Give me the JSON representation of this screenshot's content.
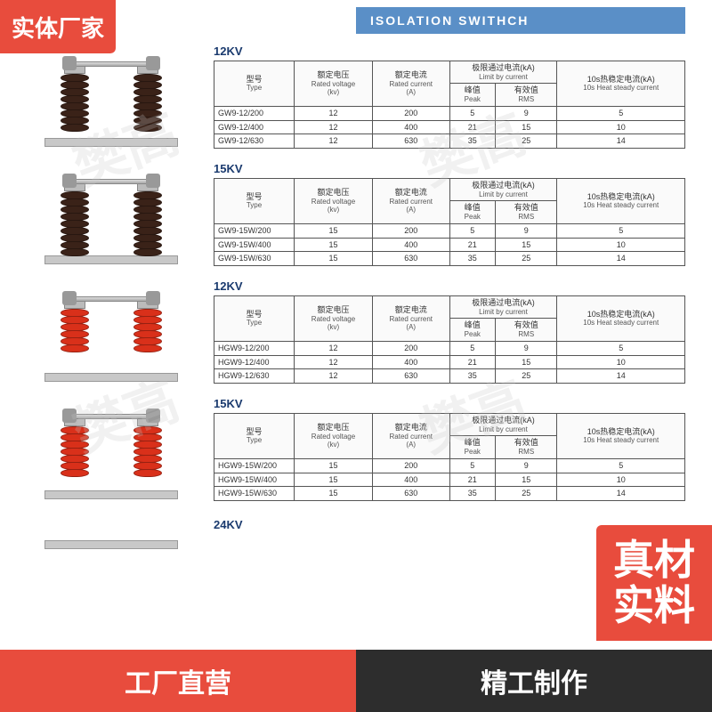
{
  "header": {
    "title": "ISOLATION SWITHCH"
  },
  "badges": {
    "top_left": "实体厂家",
    "bottom_right_l1": "真材",
    "bottom_right_l2": "实料"
  },
  "footer": {
    "left": "工厂直营",
    "right": "精工制作"
  },
  "watermark": "樊高",
  "columns": {
    "type": "型号",
    "type_en": "Type",
    "voltage": "额定电压",
    "voltage_en": "Rated voltage",
    "voltage_unit": "(kv)",
    "current": "额定电流",
    "current_en": "Rated current",
    "current_unit": "(A)",
    "limit": "极限通过电流(kA)",
    "limit_en": "Limit by current",
    "peak": "峰值",
    "peak_en": "Peak",
    "rms": "有效值",
    "rms_en": "RMS",
    "heat": "10s热稳定电流(kA)",
    "heat_en": "10s Heat steady current"
  },
  "sections": [
    {
      "voltage_label": "12KV",
      "insulator_color": "#3a2218",
      "disc_count": 8,
      "rows": [
        {
          "type": "GW9-12/200",
          "voltage": "12",
          "current": "200",
          "peak": "5",
          "rms": "9",
          "heat": "5"
        },
        {
          "type": "GW9-12/400",
          "voltage": "12",
          "current": "400",
          "peak": "21",
          "rms": "15",
          "heat": "10"
        },
        {
          "type": "GW9-12/630",
          "voltage": "12",
          "current": "630",
          "peak": "35",
          "rms": "25",
          "heat": "14"
        }
      ]
    },
    {
      "voltage_label": "15KV",
      "insulator_color": "#3a2218",
      "disc_count": 9,
      "rows": [
        {
          "type": "GW9-15W/200",
          "voltage": "15",
          "current": "200",
          "peak": "5",
          "rms": "9",
          "heat": "5"
        },
        {
          "type": "GW9-15W/400",
          "voltage": "15",
          "current": "400",
          "peak": "21",
          "rms": "15",
          "heat": "10"
        },
        {
          "type": "GW9-15W/630",
          "voltage": "15",
          "current": "630",
          "peak": "35",
          "rms": "25",
          "heat": "14"
        }
      ]
    },
    {
      "voltage_label": "12KV",
      "insulator_color": "#d9301a",
      "disc_count": 6,
      "rows": [
        {
          "type": "HGW9-12/200",
          "voltage": "12",
          "current": "200",
          "peak": "5",
          "rms": "9",
          "heat": "5"
        },
        {
          "type": "HGW9-12/400",
          "voltage": "12",
          "current": "400",
          "peak": "21",
          "rms": "15",
          "heat": "10"
        },
        {
          "type": "HGW9-12/630",
          "voltage": "12",
          "current": "630",
          "peak": "35",
          "rms": "25",
          "heat": "14"
        }
      ]
    },
    {
      "voltage_label": "15KV",
      "insulator_color": "#d9301a",
      "disc_count": 7,
      "rows": [
        {
          "type": "HGW9-15W/200",
          "voltage": "15",
          "current": "200",
          "peak": "5",
          "rms": "9",
          "heat": "5"
        },
        {
          "type": "HGW9-15W/400",
          "voltage": "15",
          "current": "400",
          "peak": "21",
          "rms": "15",
          "heat": "10"
        },
        {
          "type": "HGW9-15W/630",
          "voltage": "15",
          "current": "630",
          "peak": "35",
          "rms": "25",
          "heat": "14"
        }
      ]
    }
  ],
  "last_label": "24KV"
}
